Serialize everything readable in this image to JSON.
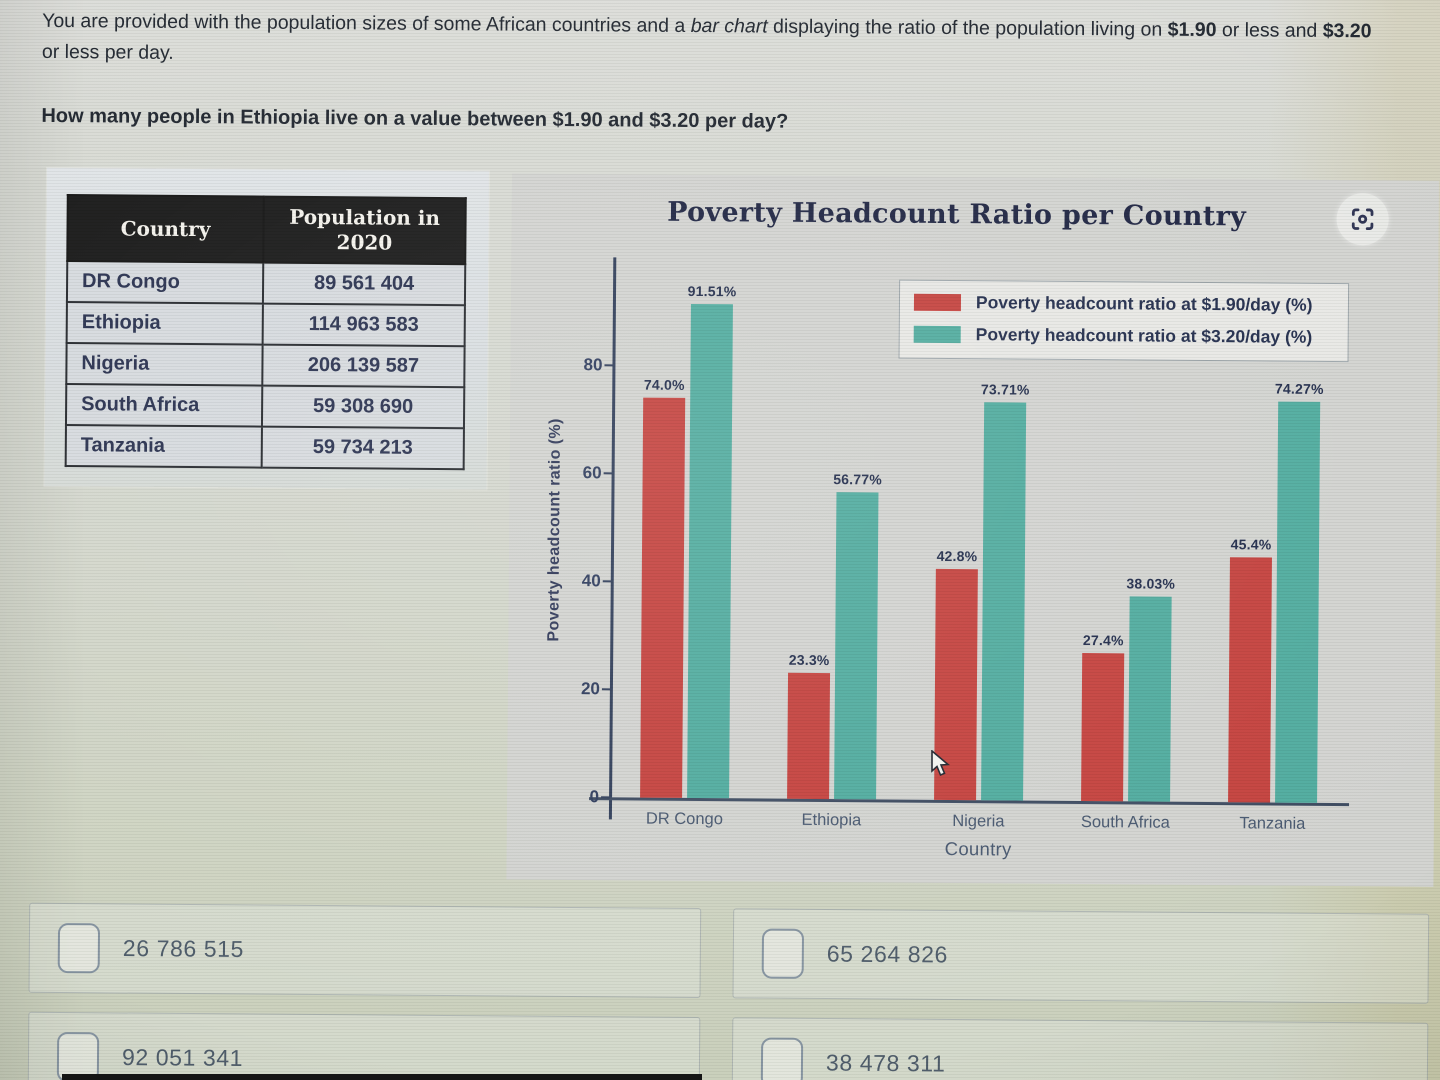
{
  "question": {
    "intro": {
      "part1": "You are provided with the population sizes of some African countries and a ",
      "italic": "bar chart",
      "part2": " displaying the ratio of the population living on ",
      "bold1": "$1.90",
      "part3": " or less and ",
      "bold2": "$3.20",
      "part4": " or less per day.",
      "prompt": "How many people in Ethiopia live on a value between $1.90 and $3.20 per day?"
    }
  },
  "table": {
    "headers": [
      "Country",
      "Population in 2020"
    ],
    "rows": [
      {
        "country": "DR Congo",
        "population": "89 561 404"
      },
      {
        "country": "Ethiopia",
        "population": "114 963 583"
      },
      {
        "country": "Nigeria",
        "population": "206 139 587"
      },
      {
        "country": "South Africa",
        "population": "59 308 690"
      },
      {
        "country": "Tanzania",
        "population": "59 734 213"
      }
    ]
  },
  "chart_data": {
    "type": "bar",
    "title": "Poverty Headcount Ratio per Country",
    "categories": [
      "DR Congo",
      "Ethiopia",
      "Nigeria",
      "South Africa",
      "Tanzania"
    ],
    "series": [
      {
        "name": "Poverty headcount ratio at $1.90/day (%)",
        "color": "#c4403c",
        "values": [
          74.0,
          23.3,
          42.8,
          27.4,
          45.4
        ],
        "labels": [
          "74.0%",
          "23.3%",
          "42.8%",
          "27.4%",
          "45.4%"
        ]
      },
      {
        "name": "Poverty headcount ratio at $3.20/day (%)",
        "color": "#4fab9e",
        "values": [
          91.51,
          56.77,
          73.71,
          38.03,
          74.27
        ],
        "labels": [
          "91.51%",
          "56.77%",
          "73.71%",
          "38.03%",
          "74.27%"
        ]
      }
    ],
    "xlabel": "Country",
    "ylabel": "Poverty headcount ratio (%)",
    "ylim": [
      0,
      100
    ],
    "yticks": [
      0,
      20,
      40,
      60,
      80
    ],
    "legend_position": "upper right",
    "grid": false
  },
  "legend": {
    "items": [
      {
        "swatch_color": "#c4403c",
        "prefix": "Poverty headcount ratio at ",
        "amount": "$1.90",
        "suffix": "/day (%)"
      },
      {
        "swatch_color": "#4fab9e",
        "prefix": "Poverty headcount ratio at ",
        "amount": "$3.20",
        "suffix": "/day (%)"
      }
    ]
  },
  "answers": [
    "26 786 515",
    "65 264 826",
    "92 051 341",
    "38 478 311"
  ],
  "icons": {
    "scan_chart": "center-focus-icon",
    "pointer": "arrow-cursor"
  },
  "colors": {
    "bar_red": "#c4403c",
    "bar_teal": "#4fab9e",
    "axis_navy": "#2e3c58",
    "table_header_bg": "#161616"
  }
}
